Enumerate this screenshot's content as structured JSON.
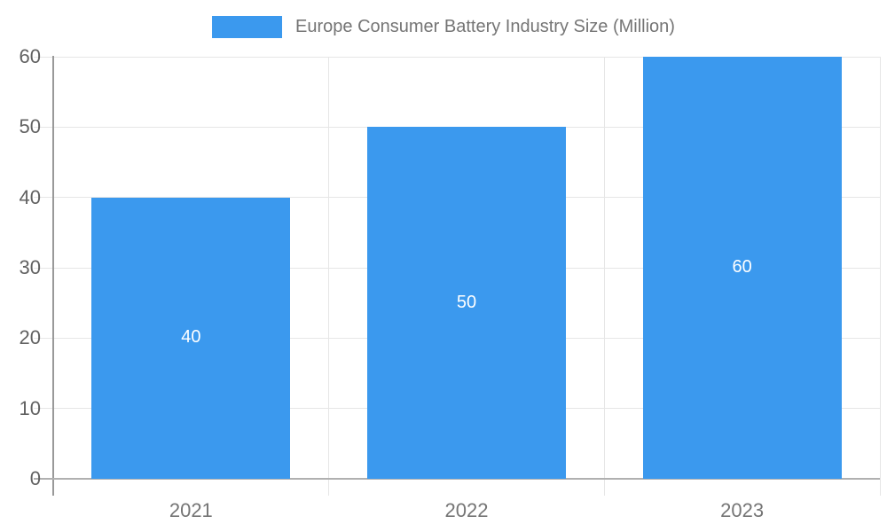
{
  "legend": {
    "label": "Europe Consumer Battery Industry Size (Million)"
  },
  "chart_data": {
    "type": "bar",
    "categories": [
      "2021",
      "2022",
      "2023"
    ],
    "series": [
      {
        "name": "Europe Consumer Battery Industry Size (Million)",
        "values": [
          40,
          50,
          60
        ]
      }
    ],
    "value_labels": [
      "40",
      "50",
      "60"
    ],
    "y_tick_labels": [
      "0",
      "10",
      "20",
      "30",
      "40",
      "50",
      "60"
    ],
    "ylim": [
      0,
      60
    ],
    "ytick_interval": 10,
    "xlabel": "",
    "ylabel": "",
    "grid": true,
    "legend_position": "top-center",
    "colors": {
      "bar": "#3B99EE",
      "value_label": "#FFFFFF",
      "gridline": "#E6E6E6",
      "x_axis_line": "#B0B0B0",
      "y_axis_line": "#999999"
    }
  }
}
